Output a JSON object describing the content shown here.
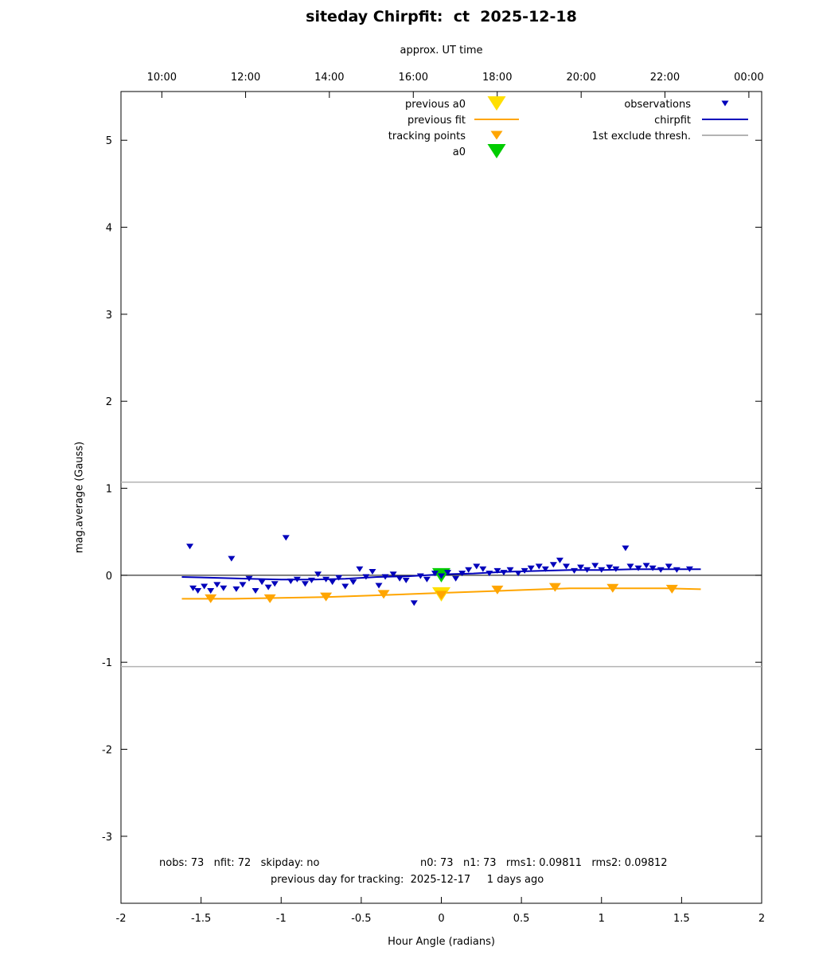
{
  "chart_data": {
    "type": "scatter",
    "title": "siteday Chirpfit:  ct  2025-12-18",
    "xlabel": "Hour Angle (radians)",
    "ylabel": "mag.average (Gauss)",
    "grid": false,
    "xlim": [
      -2,
      2
    ],
    "ylim": [
      -3.77,
      5.56
    ],
    "zero_line": 0,
    "top_axis": {
      "label": "approx. UT time",
      "ticks": [
        {
          "pos": -1.745,
          "label": "10:00"
        },
        {
          "pos": -1.222,
          "label": "12:00"
        },
        {
          "pos": -0.699,
          "label": "14:00"
        },
        {
          "pos": -0.175,
          "label": "16:00"
        },
        {
          "pos": 0.349,
          "label": "18:00"
        },
        {
          "pos": 0.873,
          "label": "20:00"
        },
        {
          "pos": 1.396,
          "label": "22:00"
        },
        {
          "pos": 1.92,
          "label": "00:00"
        }
      ]
    },
    "xticks": [
      {
        "pos": -2,
        "label": "-2"
      },
      {
        "pos": -1.5,
        "label": "-1.5"
      },
      {
        "pos": -1,
        "label": "-1"
      },
      {
        "pos": -0.5,
        "label": "-0.5"
      },
      {
        "pos": 0,
        "label": "0"
      },
      {
        "pos": 0.5,
        "label": "0.5"
      },
      {
        "pos": 1,
        "label": "1"
      },
      {
        "pos": 1.5,
        "label": "1.5"
      },
      {
        "pos": 2,
        "label": "2"
      }
    ],
    "yticks": [
      {
        "pos": -3,
        "label": "-3"
      },
      {
        "pos": -2,
        "label": "-2"
      },
      {
        "pos": -1,
        "label": "-1"
      },
      {
        "pos": 0,
        "label": "0"
      },
      {
        "pos": 1,
        "label": "1"
      },
      {
        "pos": 2,
        "label": "2"
      },
      {
        "pos": 3,
        "label": "3"
      },
      {
        "pos": 4,
        "label": "4"
      },
      {
        "pos": 5,
        "label": "5"
      }
    ],
    "series": [
      {
        "name": "1st exclude thresh.",
        "type": "hlines",
        "color": "#b3b3b3",
        "values": [
          1.07,
          -1.05
        ]
      },
      {
        "name": "previous fit",
        "type": "line",
        "color": "#ffa500",
        "points": [
          [
            -1.62,
            -0.27
          ],
          [
            -1.3,
            -0.27
          ],
          [
            -1.0,
            -0.26
          ],
          [
            -0.7,
            -0.25
          ],
          [
            -0.4,
            -0.23
          ],
          [
            -0.1,
            -0.21
          ],
          [
            0.2,
            -0.19
          ],
          [
            0.5,
            -0.17
          ],
          [
            0.8,
            -0.15
          ],
          [
            1.1,
            -0.15
          ],
          [
            1.4,
            -0.15
          ],
          [
            1.62,
            -0.16
          ]
        ]
      },
      {
        "name": "chirpfit",
        "type": "line",
        "color": "#0000bb",
        "points": [
          [
            -1.62,
            -0.02
          ],
          [
            -1.4,
            -0.03
          ],
          [
            -1.2,
            -0.04
          ],
          [
            -1.0,
            -0.05
          ],
          [
            -0.8,
            -0.05
          ],
          [
            -0.6,
            -0.04
          ],
          [
            -0.4,
            -0.02
          ],
          [
            -0.2,
            -0.01
          ],
          [
            0.0,
            0.01
          ],
          [
            0.2,
            0.02
          ],
          [
            0.4,
            0.04
          ],
          [
            0.6,
            0.05
          ],
          [
            0.8,
            0.06
          ],
          [
            1.0,
            0.06
          ],
          [
            1.2,
            0.07
          ],
          [
            1.4,
            0.07
          ],
          [
            1.62,
            0.07
          ]
        ]
      },
      {
        "name": "previous a0",
        "type": "scatter",
        "marker": "triangle-down",
        "size": "large",
        "color": "#ffdf00",
        "points": [
          [
            0,
            -0.22
          ]
        ]
      },
      {
        "name": "tracking points",
        "type": "scatter",
        "marker": "triangle-down",
        "size": "medium",
        "color": "#ffa500",
        "points": [
          [
            -1.44,
            -0.27
          ],
          [
            -1.07,
            -0.27
          ],
          [
            -0.72,
            -0.25
          ],
          [
            -0.36,
            -0.22
          ],
          [
            0.0,
            -0.23
          ],
          [
            0.35,
            -0.17
          ],
          [
            0.71,
            -0.14
          ],
          [
            1.07,
            -0.15
          ],
          [
            1.44,
            -0.16
          ]
        ]
      },
      {
        "name": "a0",
        "type": "scatter",
        "marker": "triangle-down",
        "size": "large",
        "color": "#00cc00",
        "points": [
          [
            0,
            0.0
          ]
        ]
      },
      {
        "name": "observations",
        "type": "scatter",
        "marker": "triangle-down",
        "size": "small",
        "color": "#0000bb",
        "points": [
          [
            -1.57,
            0.33
          ],
          [
            -1.55,
            -0.15
          ],
          [
            -1.52,
            -0.18
          ],
          [
            -1.48,
            -0.13
          ],
          [
            -1.44,
            -0.18
          ],
          [
            -1.4,
            -0.11
          ],
          [
            -1.36,
            -0.15
          ],
          [
            -1.31,
            0.19
          ],
          [
            -1.28,
            -0.16
          ],
          [
            -1.24,
            -0.11
          ],
          [
            -1.2,
            -0.04
          ],
          [
            -1.16,
            -0.18
          ],
          [
            -1.12,
            -0.08
          ],
          [
            -1.08,
            -0.14
          ],
          [
            -1.04,
            -0.1
          ],
          [
            -0.97,
            0.43
          ],
          [
            -0.94,
            -0.07
          ],
          [
            -0.9,
            -0.05
          ],
          [
            -0.85,
            -0.1
          ],
          [
            -0.81,
            -0.06
          ],
          [
            -0.77,
            0.01
          ],
          [
            -0.72,
            -0.05
          ],
          [
            -0.68,
            -0.08
          ],
          [
            -0.64,
            -0.03
          ],
          [
            -0.6,
            -0.13
          ],
          [
            -0.55,
            -0.08
          ],
          [
            -0.51,
            0.07
          ],
          [
            -0.47,
            -0.02
          ],
          [
            -0.43,
            0.04
          ],
          [
            -0.39,
            -0.12
          ],
          [
            -0.35,
            -0.02
          ],
          [
            -0.3,
            0.01
          ],
          [
            -0.26,
            -0.04
          ],
          [
            -0.22,
            -0.06
          ],
          [
            -0.17,
            -0.32
          ],
          [
            -0.13,
            -0.01
          ],
          [
            -0.09,
            -0.05
          ],
          [
            -0.04,
            0.02
          ],
          [
            0.0,
            -0.01
          ],
          [
            0.04,
            0.03
          ],
          [
            0.09,
            -0.04
          ],
          [
            0.13,
            0.02
          ],
          [
            0.17,
            0.06
          ],
          [
            0.22,
            0.1
          ],
          [
            0.26,
            0.07
          ],
          [
            0.3,
            0.02
          ],
          [
            0.35,
            0.05
          ],
          [
            0.39,
            0.03
          ],
          [
            0.43,
            0.06
          ],
          [
            0.48,
            0.02
          ],
          [
            0.52,
            0.05
          ],
          [
            0.56,
            0.08
          ],
          [
            0.61,
            0.1
          ],
          [
            0.65,
            0.07
          ],
          [
            0.7,
            0.12
          ],
          [
            0.74,
            0.17
          ],
          [
            0.78,
            0.1
          ],
          [
            0.83,
            0.05
          ],
          [
            0.87,
            0.09
          ],
          [
            0.91,
            0.06
          ],
          [
            0.96,
            0.11
          ],
          [
            1.0,
            0.06
          ],
          [
            1.05,
            0.09
          ],
          [
            1.09,
            0.07
          ],
          [
            1.15,
            0.31
          ],
          [
            1.18,
            0.1
          ],
          [
            1.23,
            0.08
          ],
          [
            1.28,
            0.11
          ],
          [
            1.32,
            0.08
          ],
          [
            1.37,
            0.06
          ],
          [
            1.42,
            0.1
          ],
          [
            1.47,
            0.06
          ],
          [
            1.55,
            0.07
          ]
        ]
      }
    ],
    "legend": {
      "position": "top-inside",
      "columns": [
        {
          "entries": [
            {
              "label": "previous a0",
              "series": "previous a0"
            },
            {
              "label": "previous fit",
              "series": "previous fit"
            },
            {
              "label": "tracking points",
              "series": "tracking points"
            },
            {
              "label": "a0",
              "series": "a0"
            }
          ]
        },
        {
          "entries": [
            {
              "label": "observations",
              "series": "observations"
            },
            {
              "label": "chirpfit",
              "series": "chirpfit"
            },
            {
              "label": "1st exclude thresh.",
              "series": "1st exclude thresh."
            }
          ]
        }
      ]
    },
    "stats": {
      "nobs": "73",
      "nfit": "72",
      "skipday": "no",
      "n0": "73",
      "n1": "73",
      "rms1": "0.09811",
      "rms2": "0.09812",
      "previous_day": "2025-12-17",
      "days_ago": "1 days ago",
      "line1_left": "nobs: 73   nfit: 72   skipday: no",
      "line1_right": "n0: 73   n1: 73   rms1: 0.09811   rms2: 0.09812",
      "line2": "previous day for tracking:  2025-12-17     1 days ago"
    }
  }
}
